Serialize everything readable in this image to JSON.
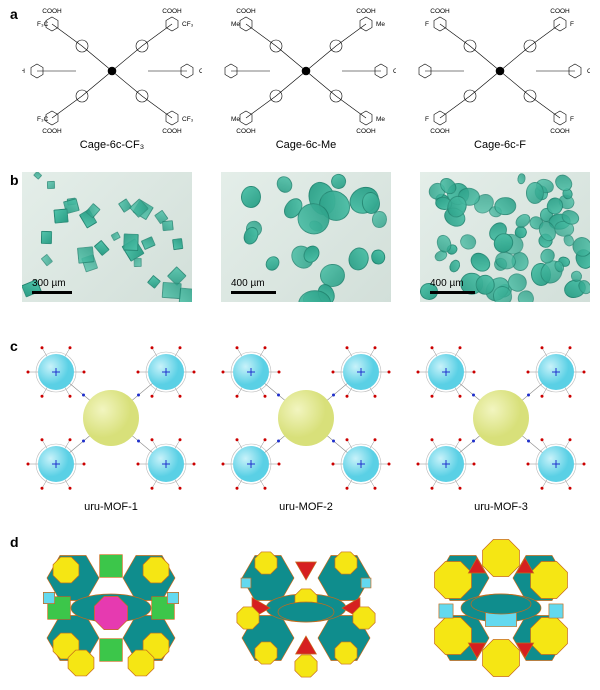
{
  "panels": [
    "a",
    "b",
    "c",
    "d"
  ],
  "row_a": {
    "items": [
      {
        "caption": "Cage-6c-CF₃",
        "substituent": "CF₃"
      },
      {
        "caption": "Cage-6c-Me",
        "substituent": "Me"
      },
      {
        "caption": "Cage-6c-F",
        "substituent": "F"
      }
    ],
    "chem_labels": {
      "cooh": "COOH",
      "f3c": "F₃C",
      "me": "Me",
      "f": "F"
    },
    "line_color": "#000000"
  },
  "row_b": {
    "items": [
      {
        "scale_text": "300 µm",
        "scale_w": 40,
        "crystal_size": 12,
        "crystal_count": 28,
        "density": "sparse"
      },
      {
        "scale_text": "400 µm",
        "scale_w": 45,
        "crystal_size": 22,
        "crystal_count": 22,
        "density": "medium"
      },
      {
        "scale_text": "400 µm",
        "scale_w": 45,
        "crystal_size": 16,
        "crystal_count": 60,
        "density": "dense"
      }
    ],
    "crystal_color": "#3fb39a",
    "background_color": "#dfe8e4"
  },
  "row_c": {
    "items": [
      {
        "caption": "uru-MOF-1"
      },
      {
        "caption": "uru-MOF-2"
      },
      {
        "caption": "uru-MOF-3"
      }
    ],
    "colors": {
      "center_sphere": "#d8e07a",
      "corner_sphere": "#5ad0e5",
      "metal": "#cc0000",
      "nitrogen": "#2030cc",
      "bond": "#888888",
      "carbon_ring": "#bbbbbb"
    }
  },
  "row_d": {
    "items": [
      {
        "polyhedra": [
          {
            "type": "magenta_cube",
            "color": "#e63ab0"
          },
          {
            "type": "yellow_to",
            "color": "#f5e614"
          },
          {
            "type": "green_octa",
            "color": "#3cc64a"
          },
          {
            "type": "teal_body",
            "color": "#0f8d8d"
          },
          {
            "type": "cyan_small",
            "color": "#63d9ef"
          }
        ],
        "edge_color": "#c76a1a"
      },
      {
        "polyhedra": [
          {
            "type": "teal_body",
            "color": "#0f8d8d"
          },
          {
            "type": "yellow_to",
            "color": "#f5e614"
          },
          {
            "type": "red_tri",
            "color": "#d62020"
          },
          {
            "type": "cyan_small",
            "color": "#63d9ef"
          }
        ],
        "edge_color": "#c76a1a"
      },
      {
        "polyhedra": [
          {
            "type": "teal_body",
            "color": "#0f8d8d"
          },
          {
            "type": "yellow_to_large",
            "color": "#f5e614"
          },
          {
            "type": "red_tri",
            "color": "#d62020"
          },
          {
            "type": "cyan_octa",
            "color": "#63d9ef"
          }
        ],
        "edge_color": "#c76a1a"
      }
    ]
  }
}
